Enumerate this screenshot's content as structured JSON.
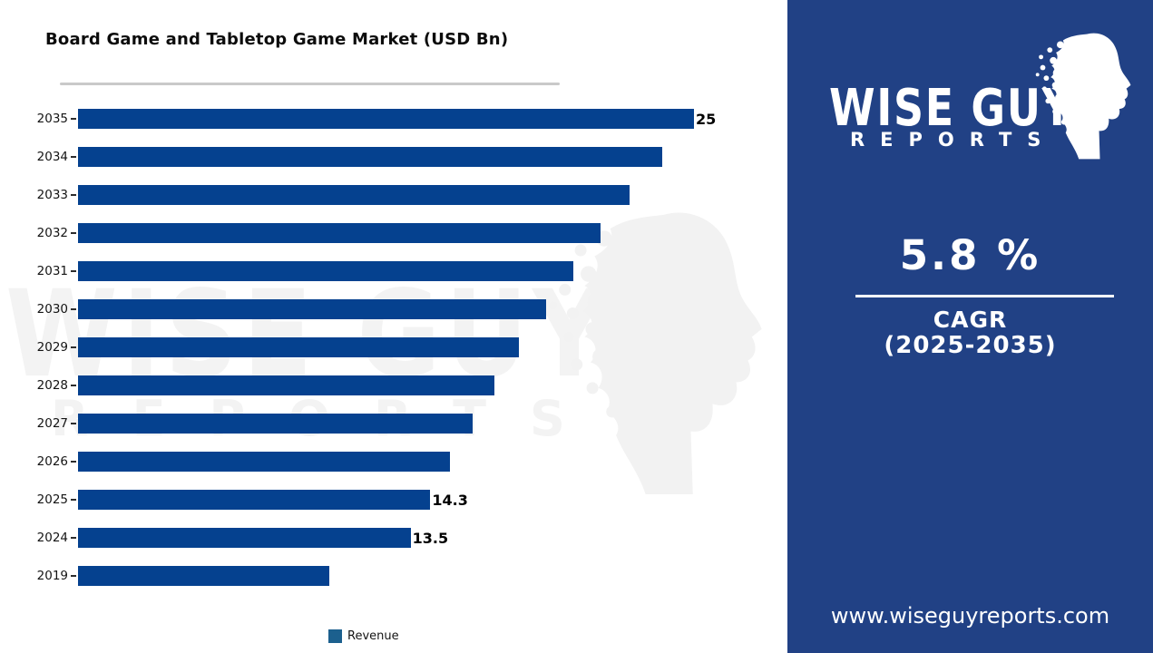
{
  "title": "Board Game and Tabletop Game Market (USD Bn)",
  "chart_data": {
    "type": "bar",
    "orientation": "horizontal",
    "categories": [
      "2035",
      "2034",
      "2033",
      "2032",
      "2031",
      "2030",
      "2029",
      "2028",
      "2027",
      "2026",
      "2025",
      "2024",
      "2019"
    ],
    "values": [
      25,
      23.7,
      22.4,
      21.2,
      20.1,
      19.0,
      17.9,
      16.9,
      16.0,
      15.1,
      14.3,
      13.5,
      10.2
    ],
    "data_labels": [
      "25",
      "",
      "",
      "",
      "",
      "",
      "",
      "",
      "",
      "",
      "14.3",
      "13.5",
      ""
    ],
    "xlim": [
      0,
      25
    ],
    "grid": false,
    "bar_color": "#05418f",
    "legend": {
      "label": "Revenue",
      "swatch_color": "#1c608e",
      "position": "bottom"
    }
  },
  "watermark": {
    "line1": "WISE GUY",
    "line2": "REPORTS"
  },
  "panel": {
    "bg_color": "#214185",
    "logo": {
      "line1": "WISE GUY",
      "line2": "REPORTS"
    },
    "cagr_value": "5.8 %",
    "cagr_title": "CAGR",
    "cagr_range": "(2025-2035)",
    "website": "www.wiseguyreports.com"
  }
}
